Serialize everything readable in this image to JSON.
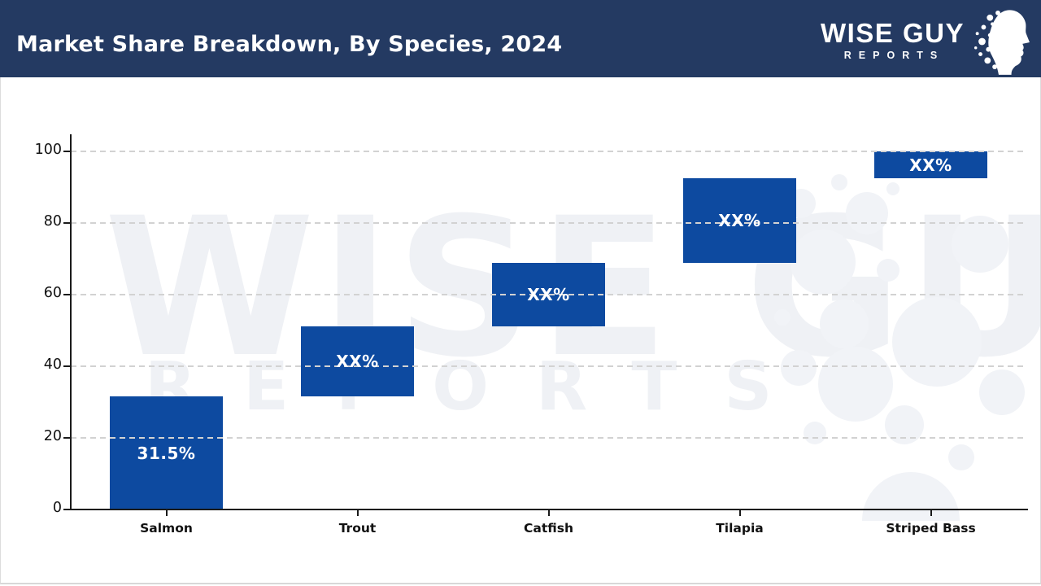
{
  "header": {
    "title": "Market Share Breakdown, By Species, 2024",
    "logo": {
      "line1": "WISE GUY",
      "line2": "REPORTS"
    }
  },
  "watermark": {
    "line1": "WISE GUY",
    "line2": "REPORTS"
  },
  "colors": {
    "header_bg": "#243a62",
    "bar_fill": "#0d4aa0",
    "grid_line": "#d2d2d2",
    "axis": "#1a1a1a",
    "bar_label_text": "#ffffff",
    "watermark": "#eff1f5"
  },
  "chart_data": {
    "type": "bar",
    "subtype": "waterfall",
    "title": "Market Share Breakdown, By Species, 2024",
    "xlabel": "",
    "ylabel": "",
    "categories": [
      "Salmon",
      "Trout",
      "Catfish",
      "Tilapia",
      "Striped Bass"
    ],
    "segments": [
      [
        0,
        31.5
      ],
      [
        31.5,
        51.2
      ],
      [
        51.2,
        68.9
      ],
      [
        68.9,
        92.5
      ],
      [
        92.5,
        100
      ]
    ],
    "values": [
      31.5,
      19.7,
      17.7,
      23.6,
      7.5
    ],
    "bar_labels": [
      "31.5%",
      "XX%",
      "XX%",
      "XX%",
      "XX%"
    ],
    "yticks": [
      0,
      20,
      40,
      60,
      80,
      100
    ],
    "ylim": [
      0,
      104.8
    ],
    "grid": "dashed horizontal, drawn over bars",
    "legend": "none"
  }
}
